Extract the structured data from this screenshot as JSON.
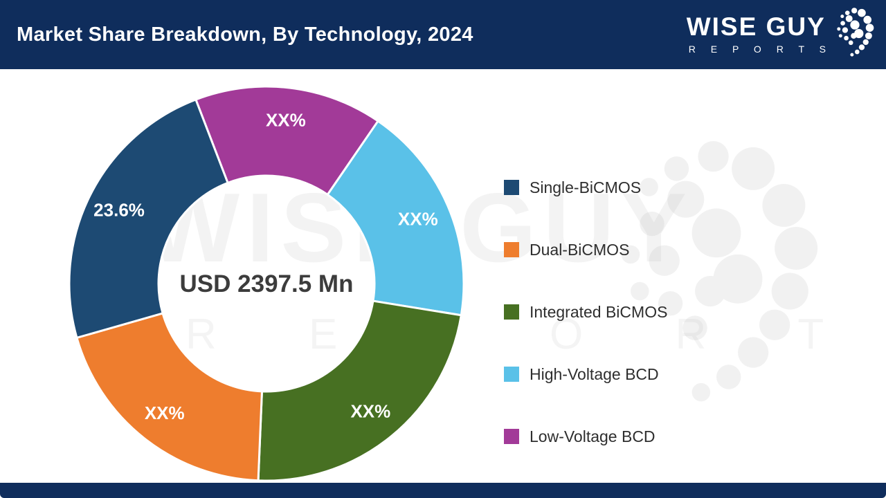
{
  "header": {
    "title": "Market Share Breakdown, By Technology, 2024",
    "logo_line1": "WISE GUY",
    "logo_line2": "R E P O R T S"
  },
  "watermark": {
    "line1": "WISE GUY",
    "line2": "R E P O R T S"
  },
  "chart_data": {
    "type": "pie",
    "subtype": "donut",
    "title": "Market Share Breakdown, By Technology, 2024",
    "center_label": "USD 2397.5 Mn",
    "start_angle_deg": -21,
    "legend_position": "right",
    "segments": [
      {
        "name": "Low-Voltage BCD",
        "display_label": "XX%",
        "value_pct_est": 15.4,
        "color": "#a23a98"
      },
      {
        "name": "High-Voltage BCD",
        "display_label": "XX%",
        "value_pct_est": 18.0,
        "color": "#5ac1e8"
      },
      {
        "name": "Integrated BiCMOS",
        "display_label": "XX%",
        "value_pct_est": 23.1,
        "color": "#477022"
      },
      {
        "name": "Dual-BiCMOS",
        "display_label": "XX%",
        "value_pct_est": 19.9,
        "color": "#ee7d2e"
      },
      {
        "name": "Single-BiCMOS",
        "display_label": "23.6%",
        "value_pct_est": 23.6,
        "color": "#1d4a73"
      }
    ],
    "legend": [
      {
        "label": "Single-BiCMOS",
        "color": "#1d4a73"
      },
      {
        "label": "Dual-BiCMOS",
        "color": "#ee7d2e"
      },
      {
        "label": "Integrated BiCMOS",
        "color": "#477022"
      },
      {
        "label": "High-Voltage BCD",
        "color": "#5ac1e8"
      },
      {
        "label": "Low-Voltage BCD",
        "color": "#a23a98"
      }
    ]
  },
  "colors": {
    "header_bg": "#0f2d5c",
    "footer_bg": "#0f2d5c"
  }
}
